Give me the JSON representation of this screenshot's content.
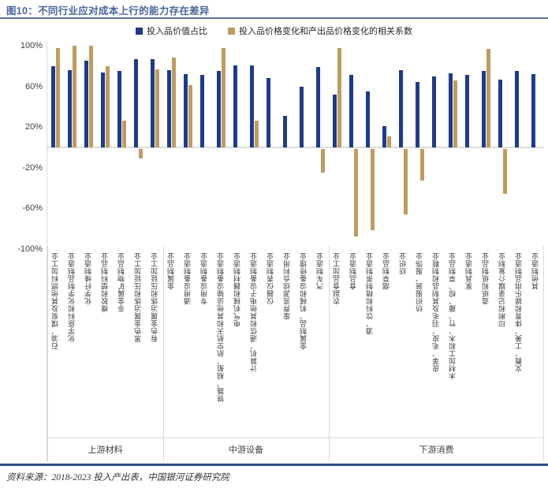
{
  "title": "图10：不同行业应对成本上行的能力存在差异",
  "source": "资料来源：2018-2023 投入产出表，中国银河证券研究院",
  "legend": [
    {
      "label": "投入品价值占比",
      "color": "#1e3a8a"
    },
    {
      "label": "投入品价格变化和产出品价格变化的相关系数",
      "color": "#bf9b60"
    }
  ],
  "colors": {
    "series_blue": "#1e3a8a",
    "series_gold": "#bf9b60",
    "title_blue": "#4a669c",
    "rule_navy": "#2f4f87",
    "axis_gray": "#d9d9d9",
    "label_gray": "#404040"
  },
  "chart_data": {
    "type": "bar",
    "title": "图10：不同行业应对成本上行的能力存在差异",
    "xlabel": "",
    "ylabel": "",
    "ylim": [
      -100,
      100
    ],
    "yticks": [
      "100%",
      "60%",
      "20%",
      "-20%",
      "-60%",
      "-100%"
    ],
    "grid": false,
    "legend_position": "top",
    "groups": [
      {
        "label": "上游材料",
        "count": 7
      },
      {
        "label": "中游设备",
        "count": 10
      },
      {
        "label": "下游消费",
        "count": 13
      }
    ],
    "categories": [
      "石油、煤炭及其他燃料加工业",
      "化学原料和化学制品制造业",
      "化学纤维制造业",
      "橡胶和塑料制品业",
      "非金属矿物制品业",
      "黑色金属冶炼和压延加工业",
      "有色金属冶炼和压延加工业",
      "金属制品业",
      "通用设备制造业",
      "专用设备制造业",
      "铁路、船舶、航空航天和其他运输设备制造业",
      "电气机械和器材制造业",
      "计算机、通信和其他电子设备制造业",
      "仪器仪表制造业",
      "废弃资源综合利用业",
      "金属制品、机械和设备修理业",
      "汽车制造业",
      "农副食品加工业",
      "食品制造业",
      "酒、饮料和精制茶制造业",
      "烟草制品业",
      "纺织业",
      "纺织服装、服饰业",
      "皮革、毛皮、羽毛及其制品和制鞋业",
      "木材加工和木、竹、藤、棕、草制品业",
      "家具制造业",
      "造纸和纸制品业",
      "印刷和记录媒介复制业",
      "文教、工美、体育和娱乐用品制造业",
      "其他制造业"
    ],
    "series": [
      {
        "name": "投入品价值占比",
        "color": "#1e3a8a",
        "values": [
          80,
          76,
          85,
          74,
          75,
          87,
          87,
          76,
          72,
          71,
          75,
          81,
          81,
          68,
          31,
          60,
          79,
          52,
          71,
          55,
          21,
          76,
          64,
          70,
          73,
          71,
          75,
          67,
          75,
          72
        ]
      },
      {
        "name": "投入品价格变化和产出品价格变化的相关系数",
        "color": "#bf9b60",
        "values": [
          98,
          100,
          100,
          80,
          26,
          -9,
          77,
          88,
          61,
          0,
          98,
          0,
          26,
          0,
          0,
          0,
          -23,
          98,
          -86,
          -80,
          11,
          -64,
          -31,
          0,
          66,
          0,
          97,
          -44,
          0,
          0
        ]
      }
    ]
  }
}
